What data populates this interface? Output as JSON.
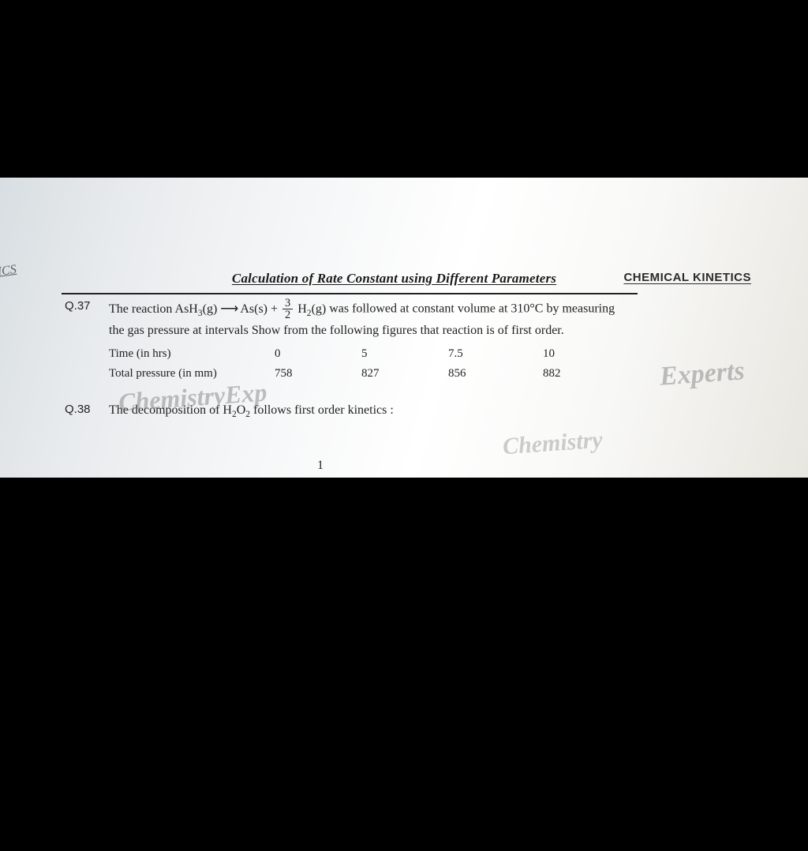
{
  "margin_label": "TICS",
  "header_right": "CHEMICAL KINETICS",
  "section_title": "Calculation of Rate Constant using Different Parameters",
  "q37": {
    "num": "Q.37",
    "line1_pre": "The reaction ",
    "reactant": "AsH",
    "reactant_sub": "3",
    "reactant_state": "(g)",
    "arrow": "⟶",
    "prod1": "As(s) +",
    "frac_n": "3",
    "frac_d": "2",
    "prod2": "H",
    "prod2_sub": "2",
    "prod2_state": "(g)",
    "line1_post": " was followed at constant volume at 310°C by measuring",
    "line2": "the gas pressure at intervals Show from the following figures that reaction is of first order.",
    "row1_label": "Time (in hrs)",
    "row1": [
      "0",
      "5",
      "7.5",
      "10"
    ],
    "row2_label": "Total pressure (in mm)",
    "row2": [
      "758",
      "827",
      "856",
      "882"
    ]
  },
  "q38": {
    "num": "Q.38",
    "text_pre": "The decomposition of H",
    "sub1": "2",
    "mid": "O",
    "sub2": "2",
    "text_post": " follows first order kinetics :"
  },
  "watermarks": {
    "w1": "ChemistryExp",
    "w2": "Experts",
    "w3": "Chemistry"
  },
  "trail": "1"
}
